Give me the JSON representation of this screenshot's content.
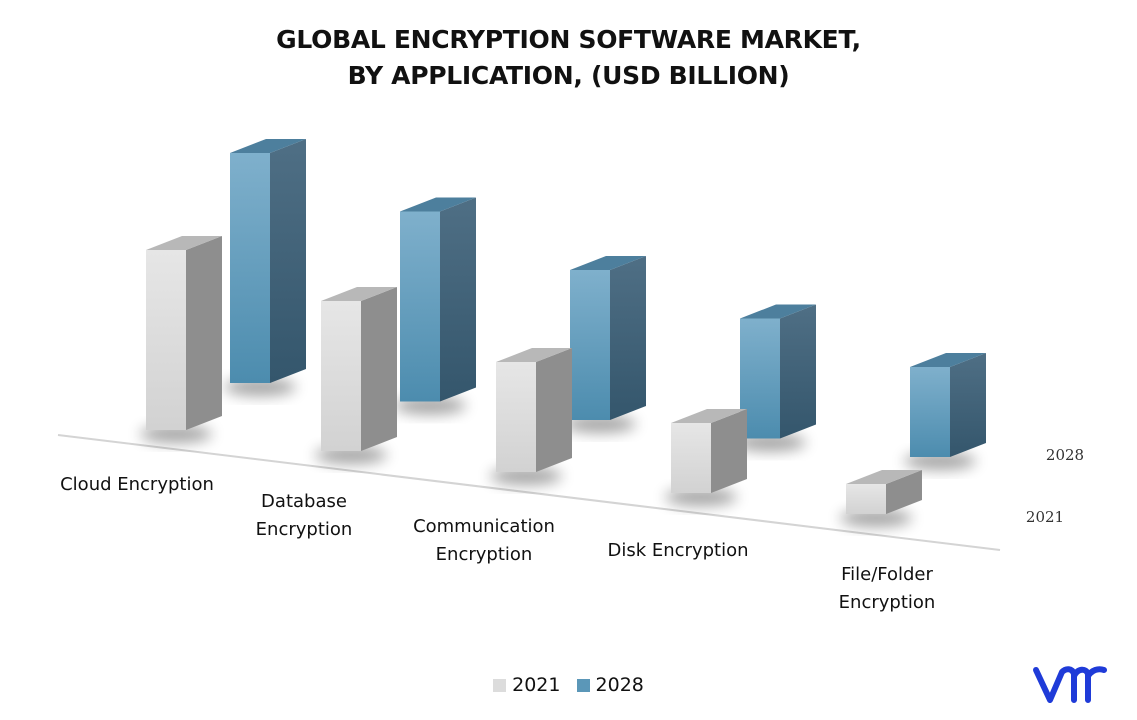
{
  "title_lines": [
    "GLOBAL ENCRYPTION SOFTWARE MARKET,",
    "BY APPLICATION, (USD BILLION)"
  ],
  "chart_data": {
    "type": "bar",
    "title": "GLOBAL ENCRYPTION SOFTWARE MARKET, BY APPLICATION, (USD BILLION)",
    "categories": [
      [
        "Cloud Encryption"
      ],
      [
        "Database",
        "Encryption"
      ],
      [
        "Communication",
        "Encryption"
      ],
      [
        "Disk Encryption"
      ],
      [
        "File/Folder",
        "Encryption"
      ]
    ],
    "series": [
      {
        "name": "2021",
        "values": [
          9.0,
          7.5,
          5.5,
          3.5,
          1.5
        ],
        "color": "#dcdcdc"
      },
      {
        "name": "2028",
        "values": [
          11.5,
          9.5,
          7.5,
          6.0,
          4.5
        ],
        "color": "#5b97b8"
      }
    ],
    "depth_axis_labels": [
      "2028",
      "2021"
    ],
    "legend_position": "bottom",
    "grid": false
  },
  "logo": {
    "name": "vmr-logo",
    "color": "#1f3bd8"
  }
}
